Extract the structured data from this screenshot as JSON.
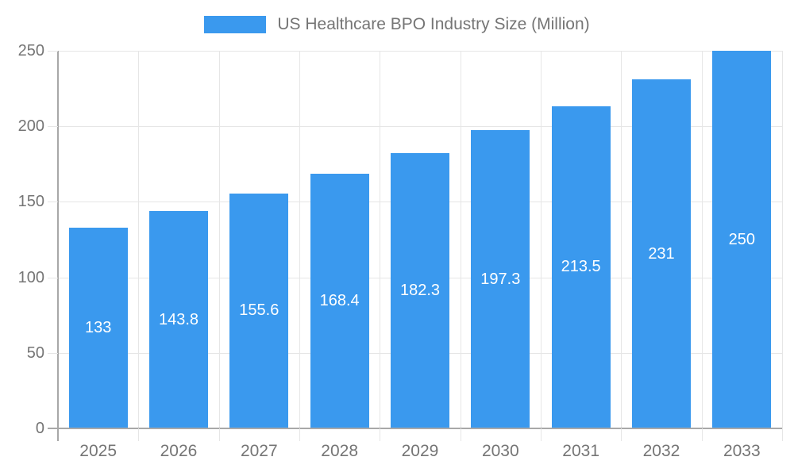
{
  "legend": {
    "label": "US Healthcare BPO Industry Size (Million)"
  },
  "chart_data": {
    "type": "bar",
    "title": "US Healthcare BPO Industry Size (Million)",
    "categories": [
      "2025",
      "2026",
      "2027",
      "2028",
      "2029",
      "2030",
      "2031",
      "2032",
      "2033"
    ],
    "values": [
      133,
      143.8,
      155.6,
      168.4,
      182.3,
      197.3,
      213.5,
      231,
      250
    ],
    "value_labels": [
      "133",
      "143.8",
      "155.6",
      "168.4",
      "182.3",
      "197.3",
      "213.5",
      "231",
      "250"
    ],
    "xlabel": "",
    "ylabel": "",
    "ylim": [
      0,
      250
    ],
    "y_ticks": [
      0,
      50,
      100,
      150,
      200,
      250
    ],
    "grid": "on",
    "legend_position": "top-center",
    "colors": {
      "bar": "#3a99ee",
      "value_label": "#ffffff",
      "axis_label": "#757575",
      "gridline": "#e6e6e6",
      "axis_line": "#a8a8a8",
      "background": "#ffffff"
    }
  }
}
